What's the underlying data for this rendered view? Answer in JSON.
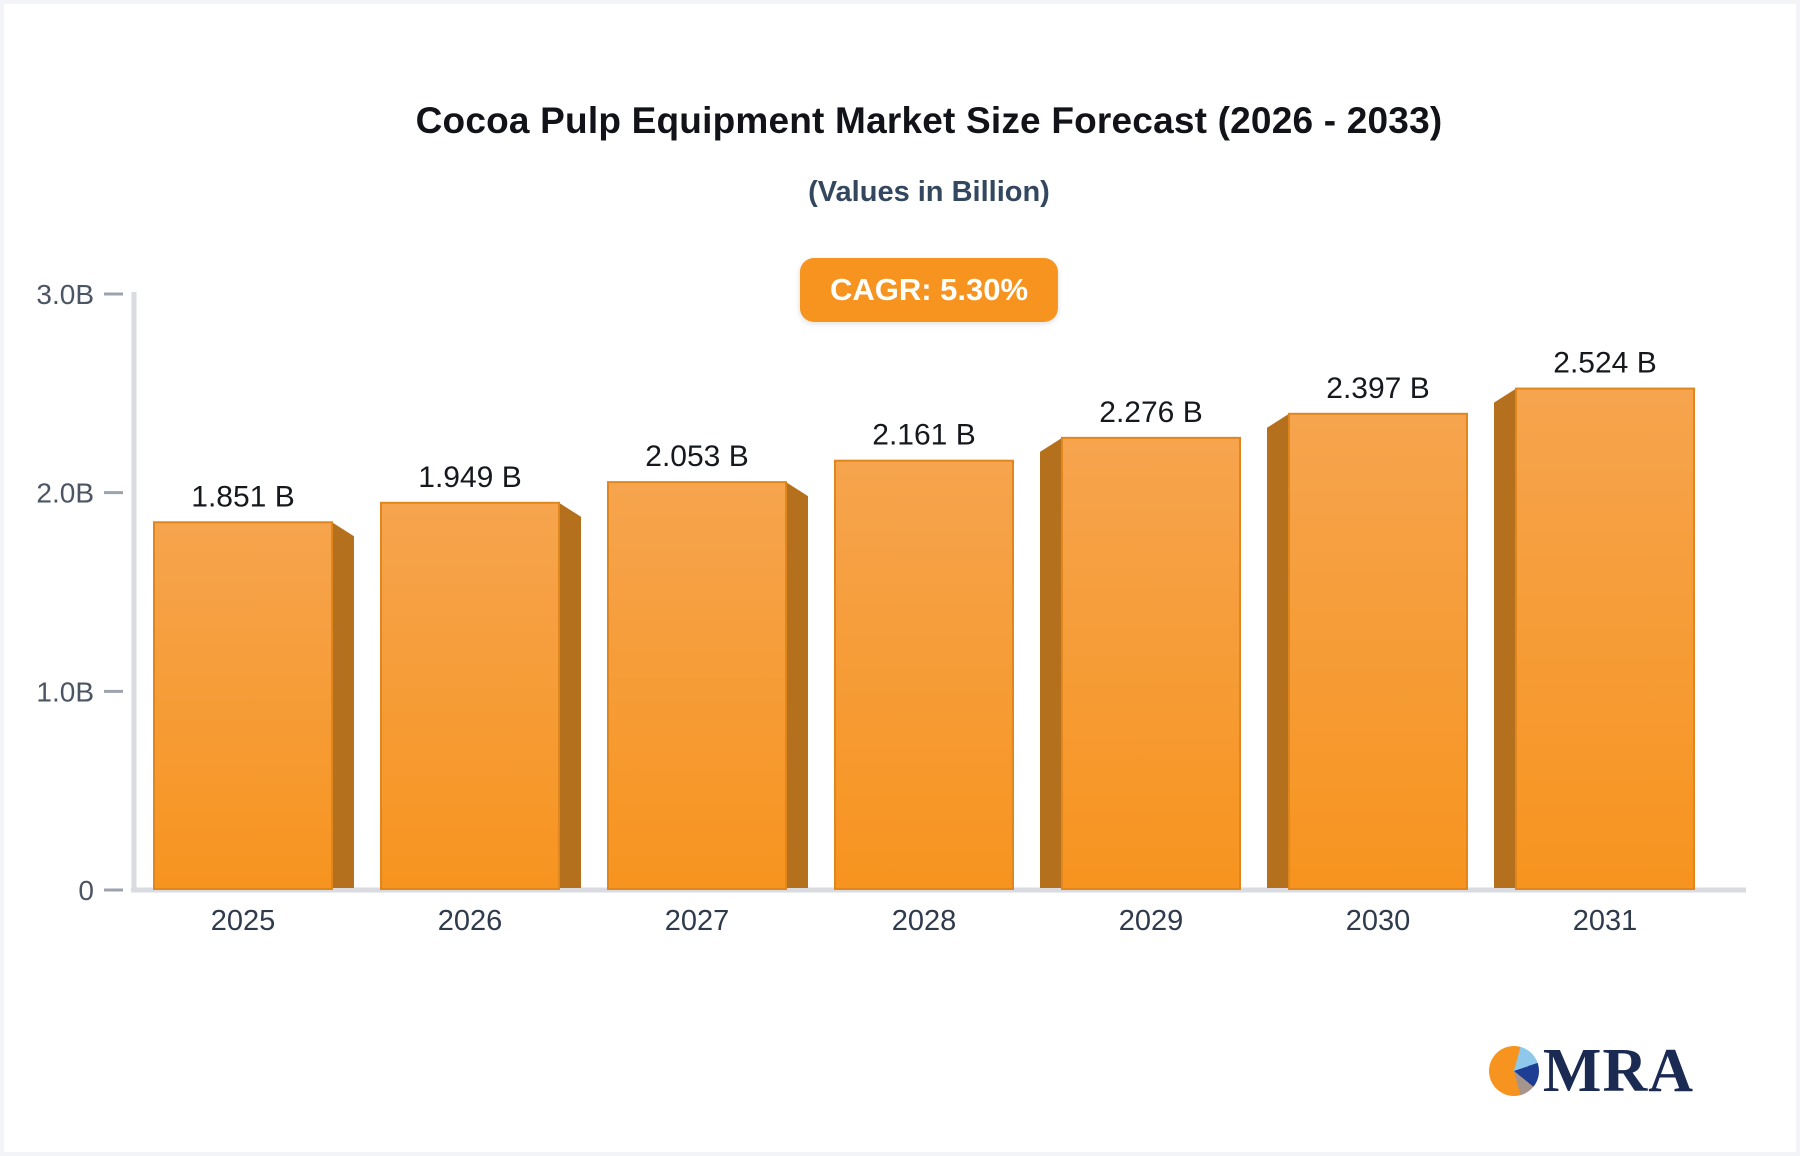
{
  "header": {
    "title": "Cocoa Pulp Equipment Market Size Forecast (2026 - 2033)",
    "subtitle": "(Values in Billion)",
    "cagr_label": "CAGR: 5.30%"
  },
  "chart_data": {
    "type": "bar",
    "title": "Cocoa Pulp Equipment Market Size Forecast (2026 - 2033)",
    "subtitle": "(Values in Billion)",
    "annotation": "CAGR: 5.30%",
    "categories": [
      "2025",
      "2026",
      "2027",
      "2028",
      "2029",
      "2030",
      "2031"
    ],
    "values": [
      1.851,
      1.949,
      2.053,
      2.161,
      2.276,
      2.397,
      2.524
    ],
    "value_labels": [
      "1.851 B",
      "1.949 B",
      "2.053 B",
      "2.161 B",
      "2.276 B",
      "2.397 B",
      "2.524 B"
    ],
    "ylabel": "",
    "xlabel": "",
    "ylim": [
      0,
      3
    ],
    "yticks": [
      {
        "v": 0,
        "label": "0"
      },
      {
        "v": 1,
        "label": "1.0B"
      },
      {
        "v": 2,
        "label": "2.0B"
      },
      {
        "v": 3,
        "label": "3.0B"
      }
    ],
    "grid": false,
    "legend": "none",
    "style": "3d-extruded-bars-facing-center",
    "colors": {
      "accent": "#f7941f",
      "bar_face_top": "#f6a44e",
      "bar_face_bottom": "#f7941f",
      "bar_face_border": "#e0861f",
      "bar_side": "#b5701d",
      "axis_line": "#d9dbe1",
      "tick_dash": "#9ca3af",
      "tick_label": "#4b5563",
      "category_label": "#2f3b4c",
      "value_label": "#15181d",
      "title": "#111318",
      "subtitle": "#33475f"
    }
  },
  "footer": {
    "logo_text": "MRA",
    "logo_colors": {
      "pie_orange": "#f7941f",
      "pie_lightblue": "#8ec9ec",
      "pie_navy": "#1d3e92",
      "pie_taupe": "#a5958d",
      "text_navy": "#1b2a52"
    }
  }
}
